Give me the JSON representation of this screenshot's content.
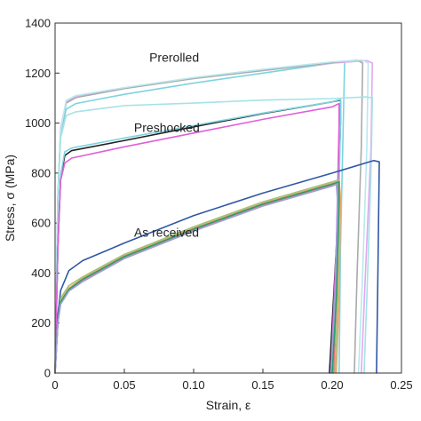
{
  "chart_data": {
    "type": "line",
    "xlabel": "Strain, ε",
    "ylabel": "Stress, σ (MPa)",
    "xlim": [
      0,
      0.25
    ],
    "ylim": [
      0,
      1400
    ],
    "xticks": [
      0,
      0.05,
      0.1,
      0.15,
      0.2,
      0.25
    ],
    "xtick_labels": [
      "0",
      "0.05",
      "0.10",
      "0.15",
      "0.20",
      "0.25"
    ],
    "yticks": [
      0,
      200,
      400,
      600,
      800,
      1000,
      1200,
      1400
    ],
    "ytick_labels": [
      "0",
      "200",
      "400",
      "600",
      "800",
      "1000",
      "1200",
      "1400"
    ],
    "grid": false,
    "annotations": [
      {
        "text": "Prerolled",
        "x": 0.068,
        "y": 1245
      },
      {
        "text": "Preshocked",
        "x": 0.057,
        "y": 965
      },
      {
        "text": "As received",
        "x": 0.057,
        "y": 545
      }
    ],
    "series": [
      {
        "group": "Prerolled",
        "color": "#7ed3e0",
        "values": [
          [
            0,
            0
          ],
          [
            0.002,
            700
          ],
          [
            0.004,
            960
          ],
          [
            0.008,
            1055
          ],
          [
            0.015,
            1078
          ],
          [
            0.05,
            1115
          ],
          [
            0.1,
            1160
          ],
          [
            0.15,
            1200
          ],
          [
            0.2,
            1240
          ],
          [
            0.209,
            1248
          ],
          [
            0.208,
            1000
          ],
          [
            0.206,
            500
          ],
          [
            0.205,
            0
          ]
        ]
      },
      {
        "group": "Prerolled",
        "color": "#e3a8f0",
        "values": [
          [
            0,
            0
          ],
          [
            0.002,
            700
          ],
          [
            0.004,
            980
          ],
          [
            0.008,
            1085
          ],
          [
            0.015,
            1108
          ],
          [
            0.05,
            1140
          ],
          [
            0.1,
            1180
          ],
          [
            0.15,
            1212
          ],
          [
            0.2,
            1240
          ],
          [
            0.225,
            1250
          ],
          [
            0.229,
            1240
          ],
          [
            0.228,
            900
          ],
          [
            0.224,
            400
          ],
          [
            0.221,
            0
          ]
        ]
      },
      {
        "group": "Prerolled",
        "color": "#aaaaaa",
        "values": [
          [
            0,
            0
          ],
          [
            0.002,
            700
          ],
          [
            0.004,
            970
          ],
          [
            0.008,
            1080
          ],
          [
            0.015,
            1102
          ],
          [
            0.05,
            1138
          ],
          [
            0.1,
            1178
          ],
          [
            0.15,
            1210
          ],
          [
            0.2,
            1242
          ],
          [
            0.218,
            1252
          ],
          [
            0.222,
            1240
          ],
          [
            0.221,
            900
          ],
          [
            0.218,
            400
          ],
          [
            0.216,
            0
          ]
        ]
      },
      {
        "group": "Prerolled",
        "color": "#b8e8ef",
        "values": [
          [
            0,
            0
          ],
          [
            0.002,
            700
          ],
          [
            0.004,
            970
          ],
          [
            0.008,
            1090
          ],
          [
            0.015,
            1110
          ],
          [
            0.05,
            1142
          ],
          [
            0.1,
            1182
          ],
          [
            0.15,
            1215
          ],
          [
            0.2,
            1245
          ],
          [
            0.222,
            1252
          ],
          [
            0.226,
            1240
          ],
          [
            0.225,
            900
          ],
          [
            0.222,
            400
          ],
          [
            0.219,
            0
          ]
        ]
      },
      {
        "group": "Prerolled",
        "color": "#a3e3e6",
        "values": [
          [
            0,
            0
          ],
          [
            0.002,
            700
          ],
          [
            0.004,
            940
          ],
          [
            0.008,
            1030
          ],
          [
            0.015,
            1045
          ],
          [
            0.05,
            1070
          ],
          [
            0.1,
            1080
          ],
          [
            0.15,
            1092
          ],
          [
            0.2,
            1098
          ],
          [
            0.225,
            1105
          ],
          [
            0.229,
            1100
          ],
          [
            0.228,
            800
          ],
          [
            0.225,
            300
          ],
          [
            0.223,
            0
          ]
        ]
      },
      {
        "group": "Preshocked",
        "color": "#222222",
        "values": [
          [
            0,
            0
          ],
          [
            0.002,
            500
          ],
          [
            0.004,
            780
          ],
          [
            0.007,
            870
          ],
          [
            0.012,
            890
          ],
          [
            0.05,
            930
          ],
          [
            0.1,
            985
          ],
          [
            0.15,
            1038
          ],
          [
            0.2,
            1085
          ],
          [
            0.206,
            1092
          ],
          [
            0.206,
            1000
          ],
          [
            0.203,
            500
          ],
          [
            0.198,
            0
          ]
        ]
      },
      {
        "group": "Preshocked",
        "color": "#7ed3e0",
        "values": [
          [
            0,
            0
          ],
          [
            0.002,
            500
          ],
          [
            0.004,
            790
          ],
          [
            0.007,
            885
          ],
          [
            0.012,
            900
          ],
          [
            0.05,
            940
          ],
          [
            0.1,
            990
          ],
          [
            0.15,
            1040
          ],
          [
            0.2,
            1085
          ],
          [
            0.206,
            1095
          ],
          [
            0.206,
            1000
          ],
          [
            0.204,
            500
          ],
          [
            0.2,
            0
          ]
        ]
      },
      {
        "group": "Preshocked",
        "color": "#e060d8",
        "values": [
          [
            0,
            0
          ],
          [
            0.002,
            500
          ],
          [
            0.004,
            770
          ],
          [
            0.007,
            840
          ],
          [
            0.012,
            860
          ],
          [
            0.05,
            905
          ],
          [
            0.1,
            960
          ],
          [
            0.15,
            1015
          ],
          [
            0.2,
            1065
          ],
          [
            0.205,
            1078
          ],
          [
            0.205,
            1000
          ],
          [
            0.203,
            500
          ],
          [
            0.199,
            0
          ]
        ]
      },
      {
        "group": "As received",
        "color": "#2f57a6",
        "values": [
          [
            0,
            0
          ],
          [
            0.002,
            230
          ],
          [
            0.004,
            330
          ],
          [
            0.01,
            410
          ],
          [
            0.02,
            450
          ],
          [
            0.05,
            520
          ],
          [
            0.1,
            630
          ],
          [
            0.15,
            720
          ],
          [
            0.2,
            800
          ],
          [
            0.23,
            850
          ],
          [
            0.234,
            845
          ],
          [
            0.233,
            400
          ],
          [
            0.232,
            0
          ]
        ]
      },
      {
        "group": "As received",
        "color": "#e8a86a",
        "values": [
          [
            0,
            0
          ],
          [
            0.002,
            200
          ],
          [
            0.004,
            290
          ],
          [
            0.01,
            340
          ],
          [
            0.02,
            380
          ],
          [
            0.05,
            470
          ],
          [
            0.1,
            580
          ],
          [
            0.15,
            680
          ],
          [
            0.2,
            760
          ],
          [
            0.205,
            770
          ],
          [
            0.206,
            700
          ],
          [
            0.205,
            300
          ],
          [
            0.203,
            0
          ]
        ]
      },
      {
        "group": "As received",
        "color": "#a9c07a",
        "values": [
          [
            0,
            0
          ],
          [
            0.002,
            200
          ],
          [
            0.004,
            300
          ],
          [
            0.01,
            350
          ],
          [
            0.02,
            385
          ],
          [
            0.05,
            475
          ],
          [
            0.1,
            585
          ],
          [
            0.15,
            685
          ],
          [
            0.2,
            765
          ],
          [
            0.204,
            772
          ],
          [
            0.205,
            700
          ],
          [
            0.204,
            300
          ],
          [
            0.202,
            0
          ]
        ]
      },
      {
        "group": "As received",
        "color": "#e07b7b",
        "values": [
          [
            0,
            0
          ],
          [
            0.002,
            200
          ],
          [
            0.004,
            280
          ],
          [
            0.01,
            330
          ],
          [
            0.02,
            370
          ],
          [
            0.05,
            462
          ],
          [
            0.1,
            572
          ],
          [
            0.15,
            672
          ],
          [
            0.2,
            752
          ],
          [
            0.204,
            760
          ],
          [
            0.205,
            690
          ],
          [
            0.203,
            300
          ],
          [
            0.201,
            0
          ]
        ]
      },
      {
        "group": "As received",
        "color": "#2a9d6f",
        "values": [
          [
            0,
            0
          ],
          [
            0.002,
            200
          ],
          [
            0.004,
            285
          ],
          [
            0.01,
            335
          ],
          [
            0.02,
            375
          ],
          [
            0.05,
            466
          ],
          [
            0.1,
            576
          ],
          [
            0.15,
            676
          ],
          [
            0.2,
            756
          ],
          [
            0.205,
            765
          ],
          [
            0.205,
            690
          ],
          [
            0.203,
            300
          ],
          [
            0.2,
            0
          ]
        ]
      },
      {
        "group": "As received",
        "color": "#9ca0d8",
        "values": [
          [
            0,
            0
          ],
          [
            0.002,
            200
          ],
          [
            0.004,
            275
          ],
          [
            0.01,
            328
          ],
          [
            0.02,
            366
          ],
          [
            0.05,
            458
          ],
          [
            0.1,
            568
          ],
          [
            0.15,
            668
          ],
          [
            0.2,
            748
          ],
          [
            0.203,
            755
          ],
          [
            0.204,
            680
          ],
          [
            0.202,
            300
          ],
          [
            0.199,
            0
          ]
        ]
      }
    ]
  }
}
